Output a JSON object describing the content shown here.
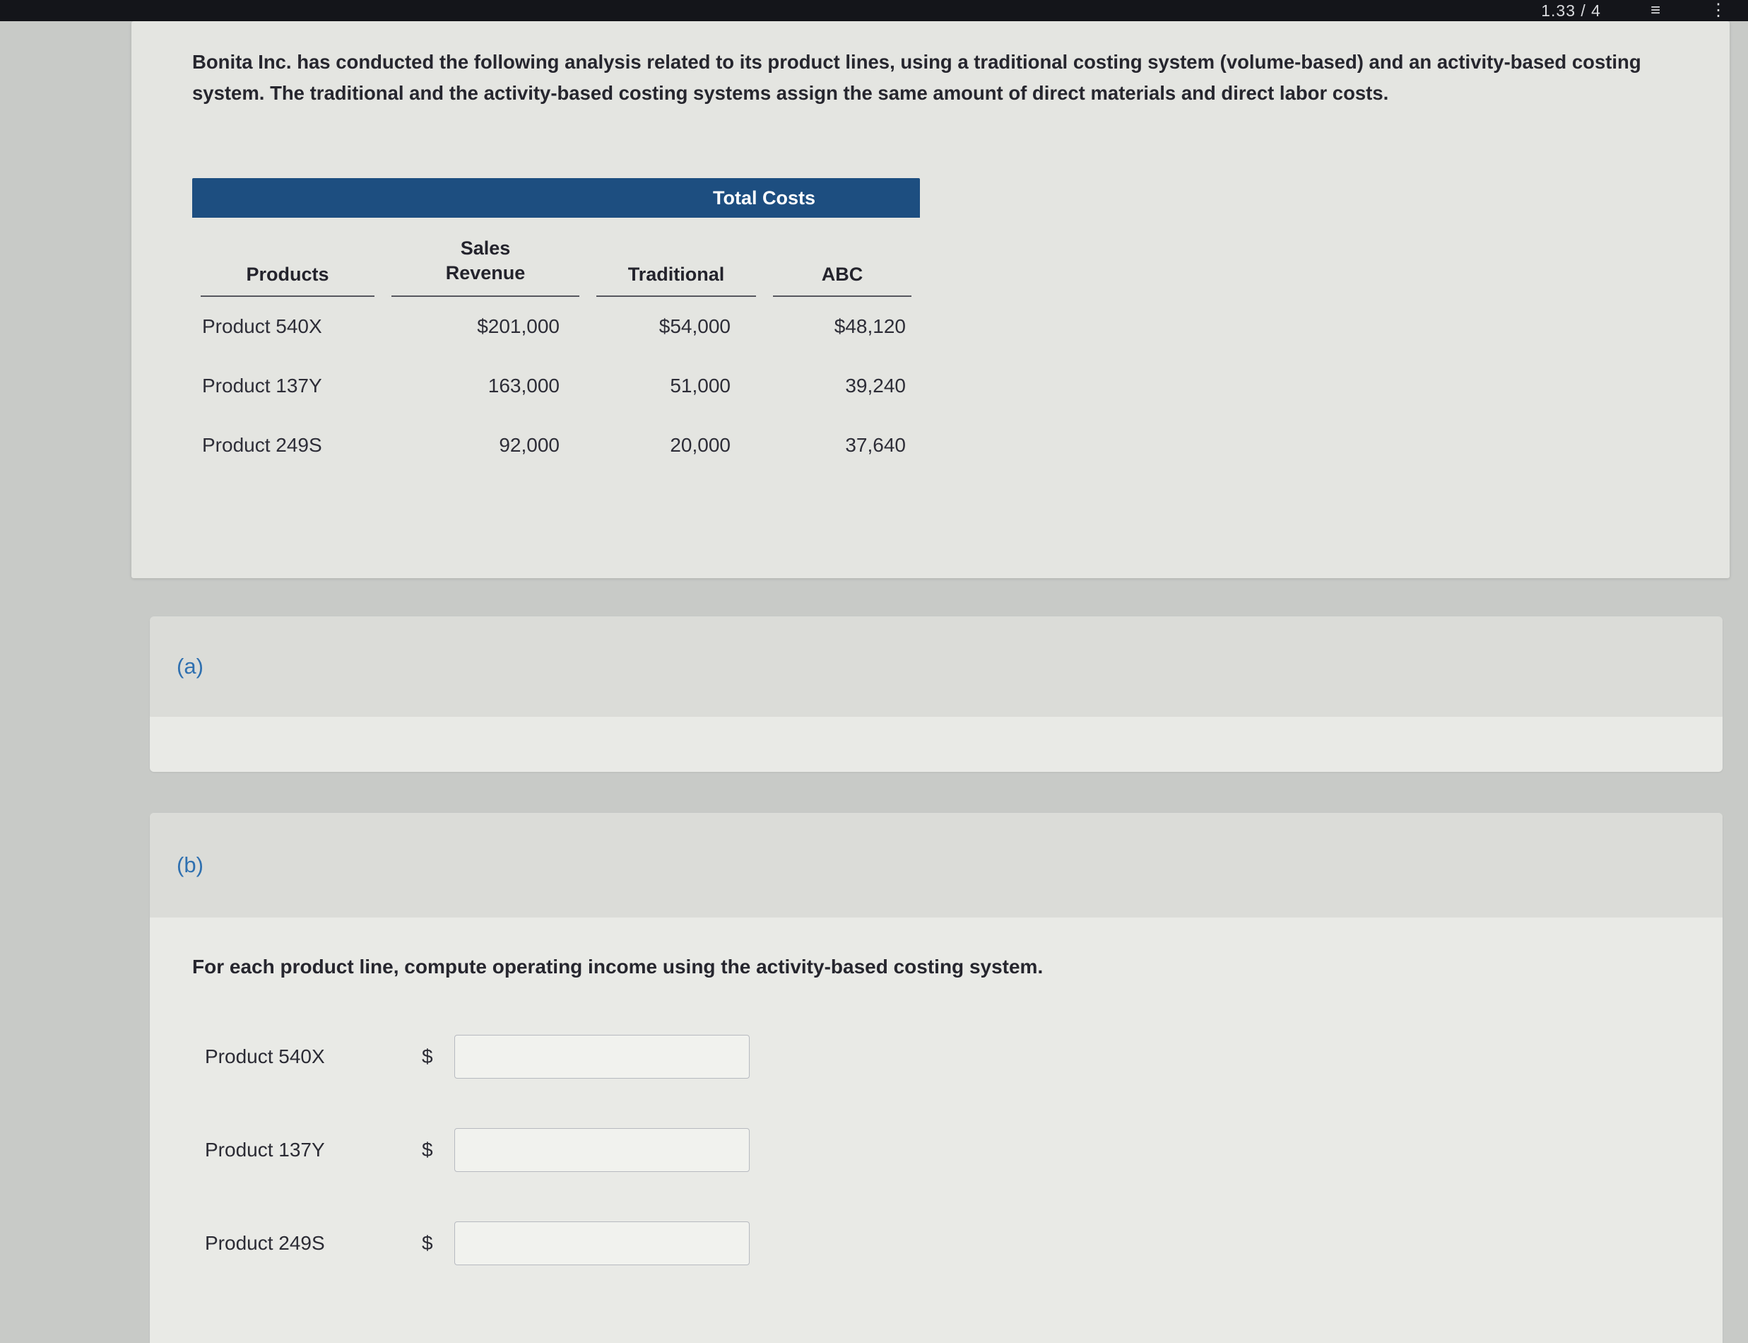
{
  "topbar": {
    "score": "1.33 / 4",
    "menu_icon": "≡",
    "kebab_icon": "⋮"
  },
  "intro": "Bonita Inc. has conducted the following analysis related to its product lines, using a traditional costing system (volume-based) and an activity-based costing system. The traditional and the activity-based costing systems assign the same amount of direct materials and direct labor costs.",
  "table": {
    "total_costs_header": "Total Costs",
    "columns": {
      "products": "Products",
      "sales_revenue_line1": "Sales",
      "sales_revenue_line2": "Revenue",
      "traditional": "Traditional",
      "abc": "ABC"
    },
    "rows": [
      {
        "product": "Product 540X",
        "sales": "$201,000",
        "traditional": "$54,000",
        "abc": "$48,120"
      },
      {
        "product": "Product 137Y",
        "sales": "163,000",
        "traditional": "51,000",
        "abc": "39,240"
      },
      {
        "product": "Product 249S",
        "sales": "92,000",
        "traditional": "20,000",
        "abc": "37,640"
      }
    ]
  },
  "sections": {
    "a_label": "(a)",
    "b_label": "(b)"
  },
  "part_b": {
    "prompt": "For each product line, compute operating income using the activity-based costing system.",
    "inputs": [
      {
        "label": "Product 540X",
        "currency": "$",
        "value": ""
      },
      {
        "label": "Product 137Y",
        "currency": "$",
        "value": ""
      },
      {
        "label": "Product 249S",
        "currency": "$",
        "value": ""
      }
    ]
  }
}
